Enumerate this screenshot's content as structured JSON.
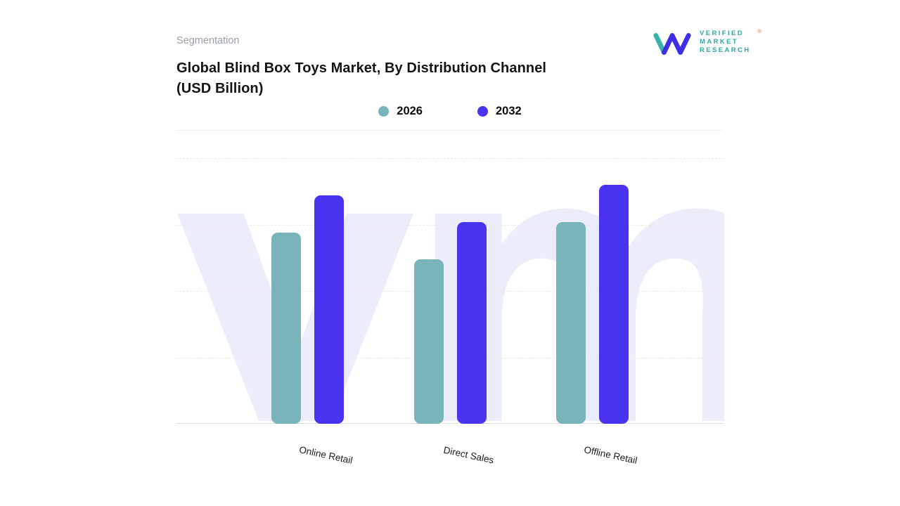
{
  "header": {
    "eyebrow": "Segmentation",
    "title_line1": "Global Blind Box Toys Market, By Distribution Channel",
    "title_line2": "(USD Billion)"
  },
  "logo": {
    "lines": [
      "VERIFIED",
      "MARKET",
      "RESEARCH"
    ],
    "registered": "®",
    "glyph_color": "#3f2ee8",
    "glyph_accent_color": "#38b2ab",
    "text_color": "#2ba9a4",
    "registered_color": "#e0662f"
  },
  "chart_data": {
    "type": "bar",
    "title": "Global Blind Box Toys Market, By Distribution Channel (USD Billion)",
    "categories": [
      "Online Retail",
      "Direct Sales",
      "Offline Retail"
    ],
    "series": [
      {
        "name": "2026",
        "color": "#79b4ba",
        "values": [
          7.2,
          6.2,
          7.6
        ]
      },
      {
        "name": "2032",
        "color": "#4733f0",
        "values": [
          8.6,
          7.6,
          9.0
        ]
      }
    ],
    "ylim": [
      0,
      10
    ],
    "xlabel": "",
    "ylabel": "",
    "y_tick_labels_visible": false,
    "grid": "horizontal-dashed",
    "legend_position": "top-center",
    "watermark_text": "vm",
    "watermark_color": "#ecedfb"
  }
}
